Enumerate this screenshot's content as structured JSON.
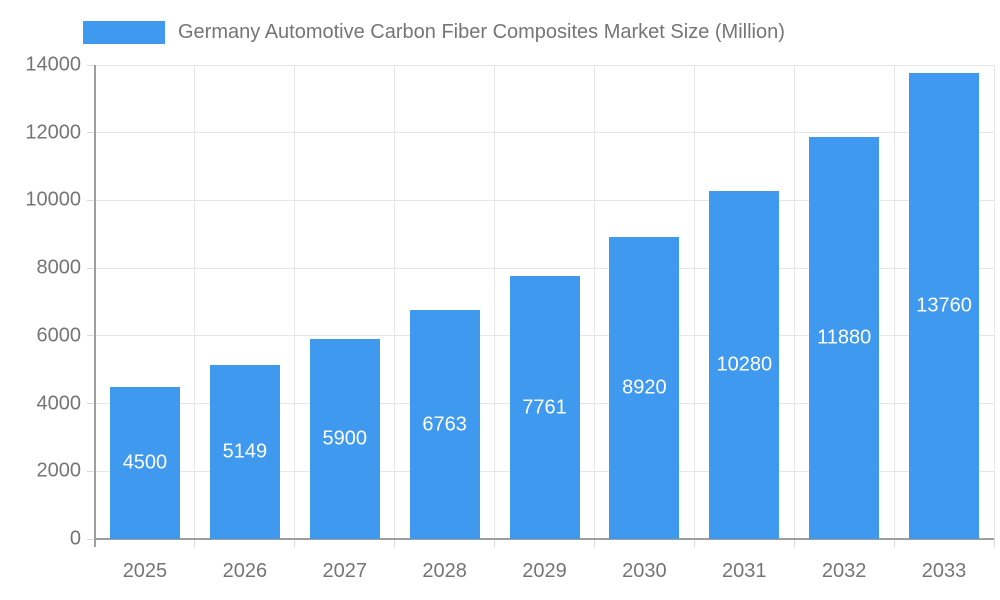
{
  "chart_data": {
    "type": "bar",
    "title": "Germany Automotive Carbon Fiber Composites Market Size (Million)",
    "categories": [
      "2025",
      "2026",
      "2027",
      "2028",
      "2029",
      "2030",
      "2031",
      "2032",
      "2033"
    ],
    "values": [
      4500,
      5149,
      5900,
      6763,
      7761,
      8920,
      10280,
      11880,
      13760
    ],
    "series": [
      {
        "name": "Germany Automotive Carbon Fiber Composites Market Size (Million)",
        "values": [
          4500,
          5149,
          5900,
          6763,
          7761,
          8920,
          10280,
          11880,
          13760
        ]
      }
    ],
    "xlabel": "",
    "ylabel": "",
    "ylim": [
      0,
      14000
    ],
    "yticks": [
      0,
      2000,
      4000,
      6000,
      8000,
      10000,
      12000,
      14000
    ],
    "grid": "both",
    "legend_position": "top-left",
    "value_labels": "inside-center",
    "colors": {
      "bar": "#3e99ef",
      "axis": "#9e9e9e",
      "grid": "#e6e6e6",
      "tick": "#d9d9d9",
      "label": "#757575",
      "value_label": "#ffffff",
      "background": "#ffffff"
    }
  }
}
